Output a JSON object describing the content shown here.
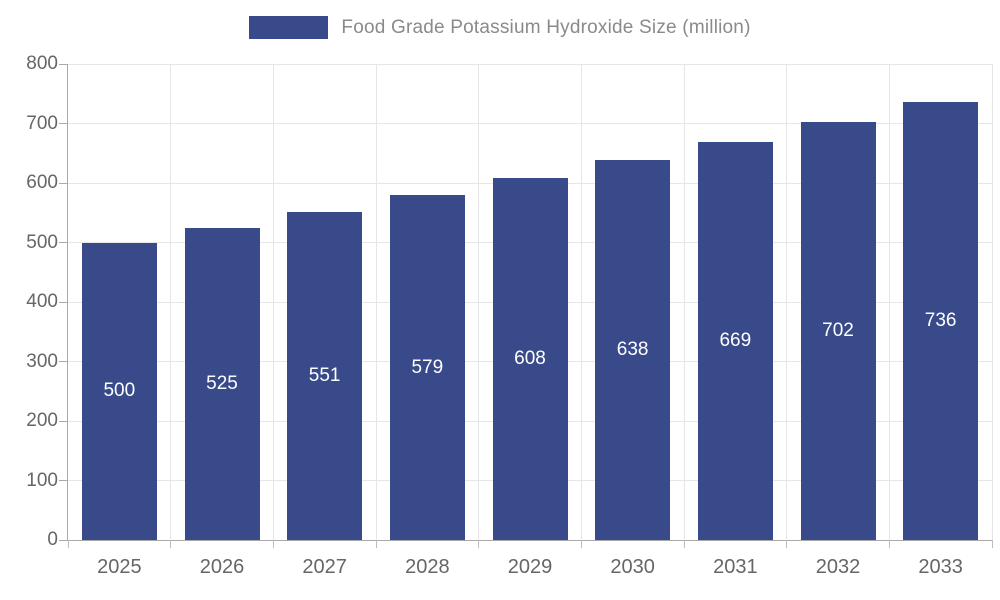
{
  "chart_data": {
    "type": "bar",
    "title": "Food Grade Potassium Hydroxide Size (million)",
    "legend": [
      "Food Grade Potassium Hydroxide Size (million)"
    ],
    "legend_position": "top",
    "categories": [
      "2025",
      "2026",
      "2027",
      "2028",
      "2029",
      "2030",
      "2031",
      "2032",
      "2033"
    ],
    "series": [
      {
        "name": "Food Grade Potassium Hydroxide Size (million)",
        "values": [
          500,
          525,
          551,
          579,
          608,
          638,
          669,
          702,
          736
        ]
      }
    ],
    "xlabel": "",
    "ylabel": "",
    "ylim": [
      0,
      800
    ],
    "y_ticks": [
      0,
      100,
      200,
      300,
      400,
      500,
      600,
      700,
      800
    ],
    "grid": true,
    "value_labels": "inside-center"
  },
  "colors": {
    "bar": "#384A8A",
    "value_label": "#FFFFFF",
    "grid_line": "#E6E6E6",
    "axis_line": "#A9A9A9",
    "x_tick": "#BEBEBE",
    "tick_label": "#666666",
    "legend_text": "#8A8A8A",
    "background": "#FFFFFF"
  }
}
